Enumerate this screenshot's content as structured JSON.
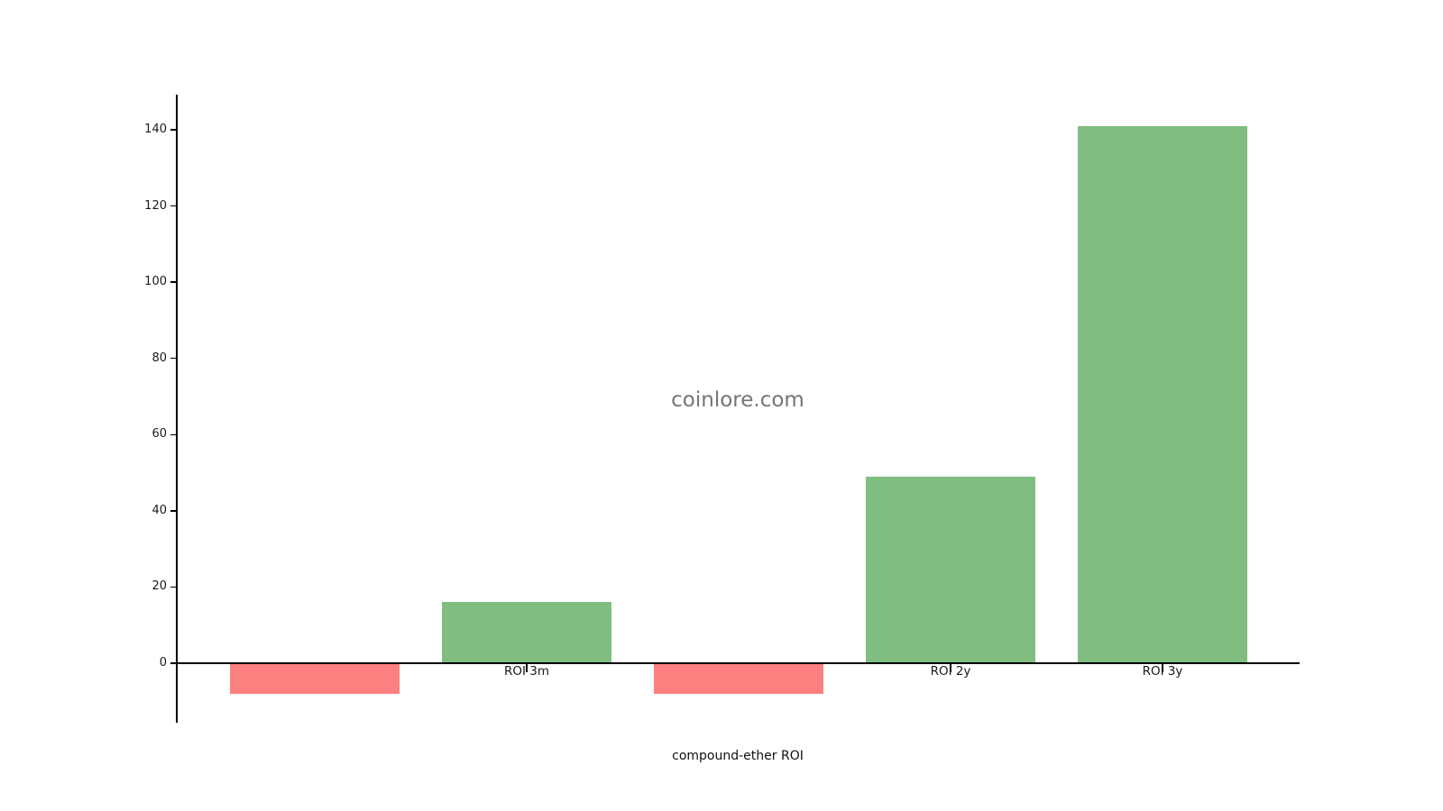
{
  "watermark": {
    "text": "coinlore.com",
    "color": "#757575"
  },
  "chart_data": {
    "type": "bar",
    "title": "compound-ether ROI",
    "categories": [
      "",
      "ROI 3m",
      "",
      "ROI 2y",
      "ROI 3y"
    ],
    "values": [
      -8,
      16,
      -8,
      49,
      141
    ],
    "yticks": [
      0,
      20,
      40,
      60,
      80,
      100,
      120,
      140
    ],
    "ylim": [
      -16,
      149
    ],
    "xlabel": "",
    "ylabel": "",
    "grid": false,
    "legend_position": "none",
    "positive_color": "#7fbe80",
    "negative_color": "#fc8080",
    "axis_color": "#000000",
    "note": "category labels for the two negative bars are hidden behind the bars in the source image"
  }
}
